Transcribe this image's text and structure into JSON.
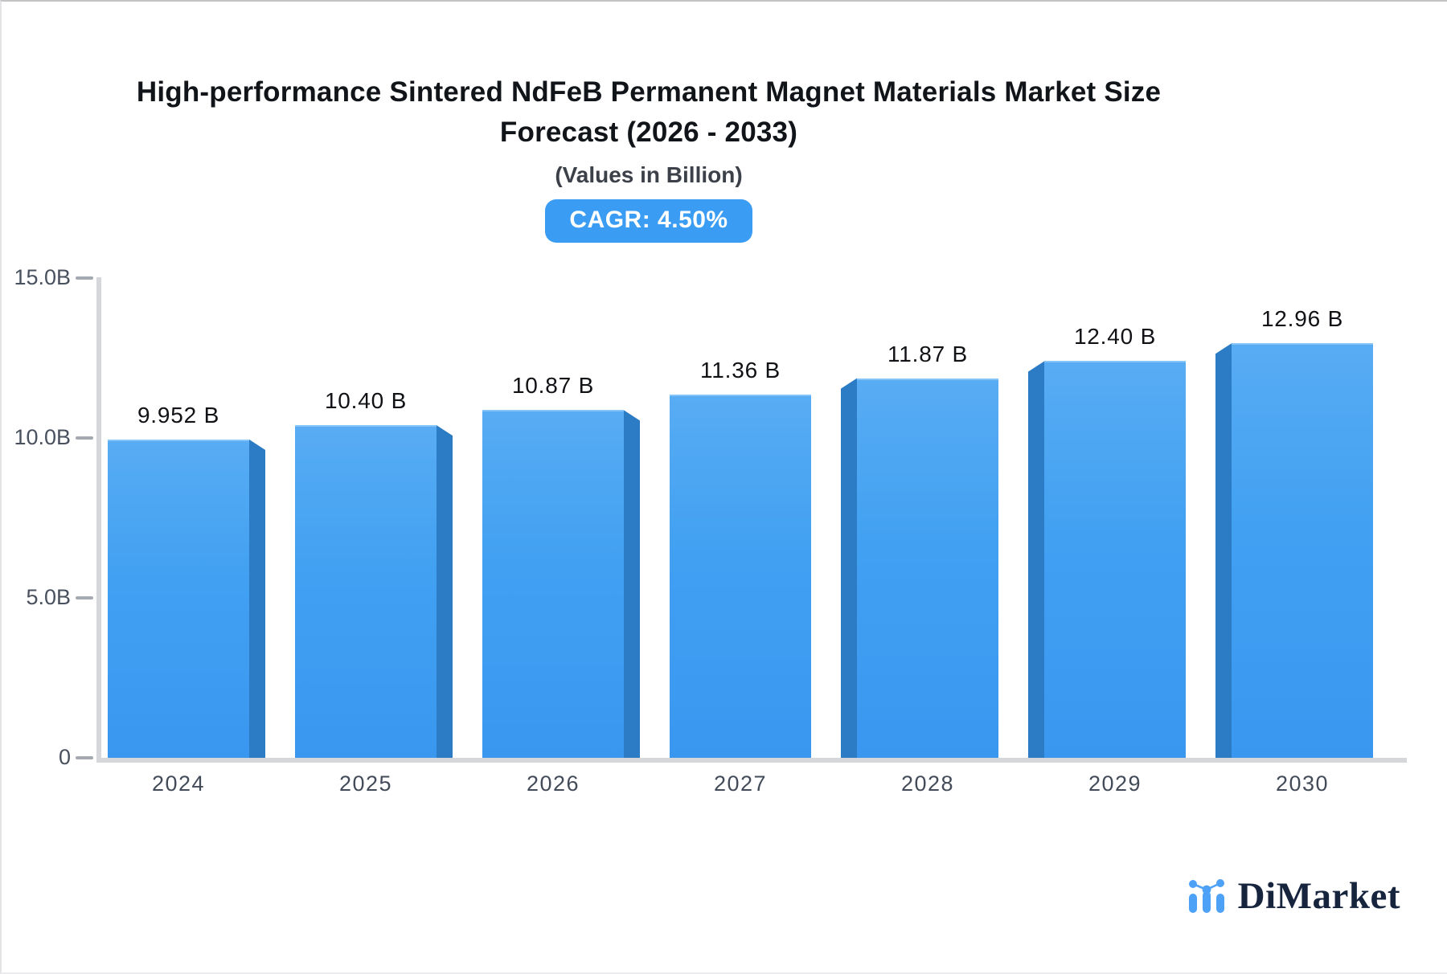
{
  "header": {
    "title_line1": "High-performance Sintered NdFeB Permanent Magnet Materials Market Size",
    "title_line2": "Forecast (2026 - 2033)",
    "subtitle": "(Values in Billion)",
    "cagr_label": "CAGR: 4.50%"
  },
  "chart_data": {
    "type": "bar",
    "title": "High-performance Sintered NdFeB Permanent Magnet Materials Market Size Forecast (2026 - 2033)",
    "subtitle": "(Values in Billion)",
    "cagr": "4.50%",
    "categories": [
      "2024",
      "2025",
      "2026",
      "2027",
      "2028",
      "2029",
      "2030"
    ],
    "values": [
      9.952,
      10.4,
      10.87,
      11.36,
      11.87,
      12.4,
      12.96
    ],
    "bar_labels": [
      "9.952 B",
      "10.40 B",
      "10.87 B",
      "11.36 B",
      "11.87 B",
      "12.40 B",
      "12.96 B"
    ],
    "y_ticks": [
      {
        "value": 0,
        "label": "0"
      },
      {
        "value": 5,
        "label": "5.0B"
      },
      {
        "value": 10,
        "label": "10.0B"
      },
      {
        "value": 15,
        "label": "15.0B"
      }
    ],
    "ylim": [
      0,
      15
    ],
    "xlabel": "",
    "ylabel": "",
    "grid": false,
    "legend": false,
    "style_3d": true,
    "colors": {
      "bar_front_top": "#58ACF3",
      "bar_front_bottom": "#3A97F0",
      "bar_side": "#2C7CC5",
      "axis_line": "#D6D7DB",
      "tick_dash": "#A5AAB2",
      "value_label": "#101215",
      "axis_label": "#49505E",
      "badge_background": "#3B9CF4",
      "badge_text": "#FFFFFF"
    }
  },
  "branding": {
    "logo_text": "DiMarket"
  }
}
